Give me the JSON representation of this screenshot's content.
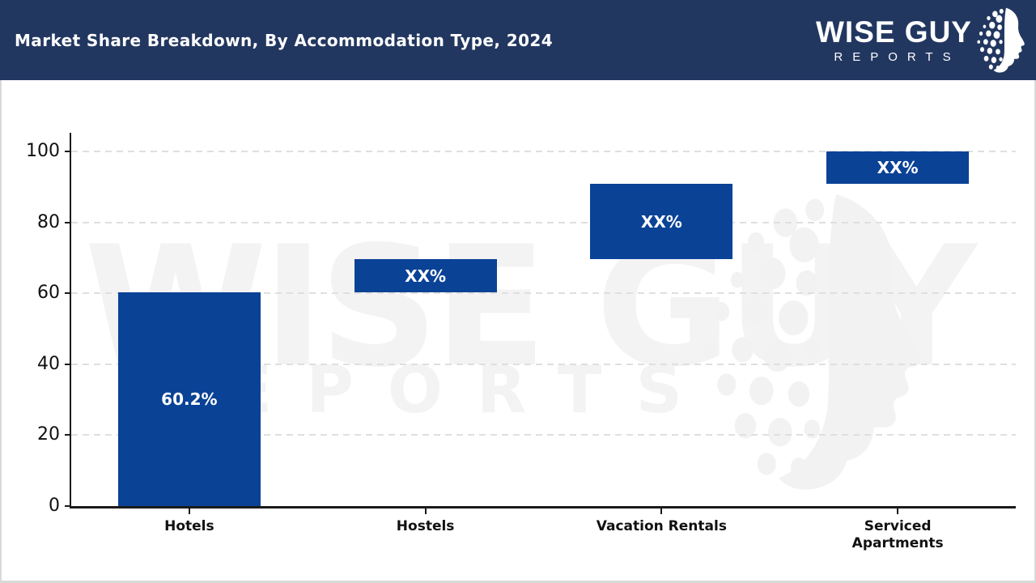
{
  "header": {
    "title": "Market Share Breakdown, By Accommodation Type, 2024",
    "logo": {
      "line1": "WISE GUY",
      "line2": "REPORTS",
      "icon": "head-profile-dots-icon"
    }
  },
  "watermark": {
    "line1": "WISE GUY",
    "line2": "REPORTS",
    "icon": "head-profile-dots-icon"
  },
  "colors": {
    "header_bg": "#223760",
    "bar": "#0A4296",
    "bar_label": "#FFFFFF",
    "grid": "#DFDFDF",
    "axis": "#1A1A1A",
    "tick_label": "#111111",
    "watermark": "#F3F3F3",
    "bottom_line": "#D9D9D9"
  },
  "chart_data": {
    "type": "bar",
    "subtype": "waterfall",
    "title": "Market Share Breakdown, By Accommodation Type, 2024",
    "xlabel": "",
    "ylabel": "",
    "categories": [
      "Hotels",
      "Hostels",
      "Vacation Rentals",
      "Serviced\nApartments"
    ],
    "bars": [
      {
        "category": "Hotels",
        "from": 0,
        "to": 60.2,
        "label": "60.2%"
      },
      {
        "category": "Hostels",
        "from": 60.2,
        "to": 69.7,
        "label": "XX%"
      },
      {
        "category": "Vacation Rentals",
        "from": 69.7,
        "to": 90.8,
        "label": "XX%"
      },
      {
        "category": "Serviced\nApartments",
        "from": 90.8,
        "to": 100,
        "label": "XX%"
      }
    ],
    "ylim": [
      0,
      100
    ],
    "yticks": [
      0,
      20,
      40,
      60,
      80,
      100
    ],
    "grid": "horizontal-dashed",
    "legend": "none"
  }
}
